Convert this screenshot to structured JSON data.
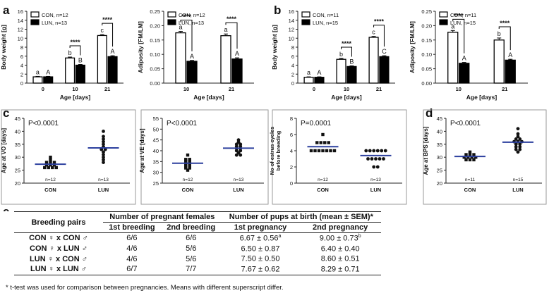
{
  "panel_letters": [
    "a",
    "b",
    "c",
    "d",
    "e"
  ],
  "chart_data": [
    {
      "id": "a_bw",
      "type": "bar",
      "panel": "a",
      "title": "",
      "xlabel": "Age [days]",
      "ylabel": "Body weight [g]",
      "ylim": [
        0,
        16
      ],
      "yticks": [
        "0",
        "2",
        "4",
        "6",
        "8",
        "10",
        "12",
        "14",
        "16"
      ],
      "categories": [
        "0",
        "10",
        "21"
      ],
      "series": [
        {
          "name": "CON, n=12",
          "values": [
            1.4,
            5.6,
            10.6
          ],
          "errors": [
            0.1,
            0.2,
            0.2
          ],
          "letters": [
            "a",
            "b",
            "c"
          ],
          "fill": "#ffffff"
        },
        {
          "name": "LUN, n=13",
          "values": [
            1.4,
            4.0,
            5.9
          ],
          "errors": [
            0.1,
            0.15,
            0.2
          ],
          "letters": [
            "A",
            "B",
            "A"
          ],
          "fill": "#000000"
        }
      ],
      "sig": [
        {
          "cat": 1,
          "label": "****"
        },
        {
          "cat": 2,
          "label": "****"
        }
      ]
    },
    {
      "id": "a_adip",
      "type": "bar",
      "panel": "a",
      "title": "",
      "xlabel": "Age [days]",
      "ylabel": "Adiposity [FM/LM]",
      "ylim": [
        0,
        0.25
      ],
      "yticks": [
        "0.00",
        "0.05",
        "0.10",
        "0.15",
        "0.20",
        "0.25"
      ],
      "categories": [
        "10",
        "21"
      ],
      "series": [
        {
          "name": "CON, n=12",
          "values": [
            0.175,
            0.165
          ],
          "errors": [
            0.005,
            0.006
          ],
          "letters": [
            "a",
            "a"
          ],
          "fill": "#ffffff"
        },
        {
          "name": "LUN, n=13",
          "values": [
            0.076,
            0.084
          ],
          "errors": [
            0.003,
            0.004
          ],
          "letters": [
            "A",
            "A"
          ],
          "fill": "#000000"
        }
      ],
      "sig": [
        {
          "cat": 0,
          "label": "****"
        },
        {
          "cat": 1,
          "label": "****"
        }
      ]
    },
    {
      "id": "b_bw",
      "type": "bar",
      "panel": "b",
      "title": "",
      "xlabel": "Age [days]",
      "ylabel": "Body weight [g]",
      "ylim": [
        0,
        16
      ],
      "yticks": [
        "0",
        "2",
        "4",
        "6",
        "8",
        "10",
        "12",
        "14",
        "16"
      ],
      "categories": [
        "0",
        "10",
        "21"
      ],
      "series": [
        {
          "name": "CON, n=11",
          "values": [
            1.3,
            5.3,
            10.2
          ],
          "errors": [
            0.1,
            0.2,
            0.2
          ],
          "letters": [
            "a",
            "b",
            "c"
          ],
          "fill": "#ffffff"
        },
        {
          "name": "LUN, n=15",
          "values": [
            1.3,
            3.7,
            5.9
          ],
          "errors": [
            0.1,
            0.15,
            0.2
          ],
          "letters": [
            "A",
            "B",
            "C"
          ],
          "fill": "#000000"
        }
      ],
      "sig": [
        {
          "cat": 1,
          "label": "****"
        },
        {
          "cat": 2,
          "label": "****"
        }
      ]
    },
    {
      "id": "b_adip",
      "type": "bar",
      "panel": "b",
      "title": "",
      "xlabel": "Age [days]",
      "ylabel": "Adiposity [FM/LM]",
      "ylim": [
        0,
        0.25
      ],
      "yticks": [
        "0.00",
        "0.05",
        "0.10",
        "0.15",
        "0.20",
        "0.25"
      ],
      "categories": [
        "10",
        "21"
      ],
      "series": [
        {
          "name": "CON, n=11",
          "values": [
            0.177,
            0.15
          ],
          "errors": [
            0.006,
            0.007
          ],
          "letters": [
            "a",
            "b"
          ],
          "fill": "#ffffff"
        },
        {
          "name": "LUN, n=15",
          "values": [
            0.069,
            0.08
          ],
          "errors": [
            0.003,
            0.003
          ],
          "letters": [
            "A",
            "A"
          ],
          "fill": "#000000"
        }
      ],
      "sig": [
        {
          "cat": 0,
          "label": "****"
        },
        {
          "cat": 1,
          "label": "****"
        }
      ]
    },
    {
      "id": "c_vo",
      "type": "scatter",
      "panel": "c",
      "ylabel": "Age at VO [days]",
      "ylim": [
        20,
        45
      ],
      "yticks": [
        "20",
        "25",
        "30",
        "35",
        "40",
        "45"
      ],
      "pvalue": "P<0.0001",
      "groups": [
        {
          "name": "CON",
          "n": "n=12",
          "mean": 27.3,
          "points": [
            30,
            29,
            28,
            28,
            28,
            27,
            27,
            27,
            26,
            26,
            26,
            26
          ]
        },
        {
          "name": "LUN",
          "n": "n=13",
          "mean": 33.6,
          "points": [
            40,
            38,
            37,
            36,
            35,
            34,
            33,
            33,
            32,
            31,
            30,
            29,
            28
          ]
        }
      ]
    },
    {
      "id": "c_ve",
      "type": "scatter",
      "panel": "c",
      "ylabel": "Age at VE [days]",
      "ylim": [
        25,
        55
      ],
      "yticks": [
        "25",
        "30",
        "35",
        "40",
        "45",
        "50",
        "55"
      ],
      "pvalue": "P<0.0001",
      "groups": [
        {
          "name": "CON",
          "n": "n=12",
          "mean": 34.2,
          "points": [
            38,
            36,
            36,
            35,
            35,
            34,
            34,
            33,
            33,
            32,
            32,
            31
          ]
        },
        {
          "name": "LUN",
          "n": "n=13",
          "mean": 41.2,
          "points": [
            45,
            44,
            43,
            43,
            42,
            42,
            41,
            41,
            40,
            40,
            39,
            38,
            38
          ]
        }
      ]
    },
    {
      "id": "c_cycles",
      "type": "scatter",
      "panel": "c",
      "ylabel": "No of estrus cycles before breeding",
      "ylim": [
        0,
        8
      ],
      "yticks": [
        "0",
        "2",
        "4",
        "6",
        "8"
      ],
      "pvalue": "P=0.0001",
      "groups": [
        {
          "name": "CON",
          "n": "n=12",
          "mean": 4.5,
          "points": [
            6,
            5,
            5,
            5,
            5,
            4,
            4,
            4,
            4,
            4,
            4,
            4
          ]
        },
        {
          "name": "LUN",
          "n": "n=13",
          "mean": 3.4,
          "points": [
            4,
            4,
            4,
            4,
            4,
            4,
            3,
            3,
            3,
            3,
            3,
            2,
            2
          ]
        }
      ]
    },
    {
      "id": "d_bps",
      "type": "scatter",
      "panel": "d",
      "ylabel": "Age at BPS [days]",
      "ylim": [
        20,
        45
      ],
      "yticks": [
        "20",
        "25",
        "30",
        "35",
        "40",
        "45"
      ],
      "pvalue": "P<0.0001",
      "groups": [
        {
          "name": "CON",
          "n": "n=11",
          "mean": 30.3,
          "points": [
            32,
            31,
            31,
            31,
            30,
            30,
            30,
            30,
            29,
            29,
            29
          ]
        },
        {
          "name": "LUN",
          "n": "n=15",
          "mean": 35.8,
          "points": [
            41,
            39,
            38,
            37,
            37,
            36,
            36,
            36,
            35,
            35,
            34,
            34,
            33,
            33,
            32
          ]
        }
      ]
    }
  ],
  "table": {
    "h_pairs": "Breeding pairs",
    "h_pregnant": "Number of pregnant females",
    "h_pups": "Number of pups at birth (mean ± SEM)*",
    "sub": [
      "1st breeding",
      "2nd breeding",
      "1st pregnancy",
      "2nd pregnancy"
    ],
    "rows": [
      {
        "pair": "CON ♀ x CON ♂",
        "b1": "6/6",
        "b2": "6/6",
        "p1": "6.67 ± 0.56",
        "p1_sup": "a",
        "p2": "9.00 ± 0.73",
        "p2_sup": "b"
      },
      {
        "pair": "CON ♀ x LUN ♂",
        "b1": "4/6",
        "b2": "5/6",
        "p1": "6.50 ± 0.87",
        "p1_sup": "",
        "p2": "6.40 ± 0.40",
        "p2_sup": ""
      },
      {
        "pair": "LUN ♀ x CON ♂",
        "b1": "4/6",
        "b2": "5/6",
        "p1": "7.50 ± 0.50",
        "p1_sup": "",
        "p2": "8.60 ± 0.51",
        "p2_sup": ""
      },
      {
        "pair": "LUN ♀ x LUN ♂",
        "b1": "6/7",
        "b2": "7/7",
        "p1": "7.67 ± 0.62",
        "p1_sup": "",
        "p2": "8.29 ± 0.71",
        "p2_sup": ""
      }
    ],
    "footnote": "* t-test was used for comparison between pregnancies. Means with different superscript differ."
  },
  "colors": {
    "mean_line": "#2b3f9e",
    "points": "#111111",
    "axis": "#222222",
    "box": "#9a9a9a"
  }
}
